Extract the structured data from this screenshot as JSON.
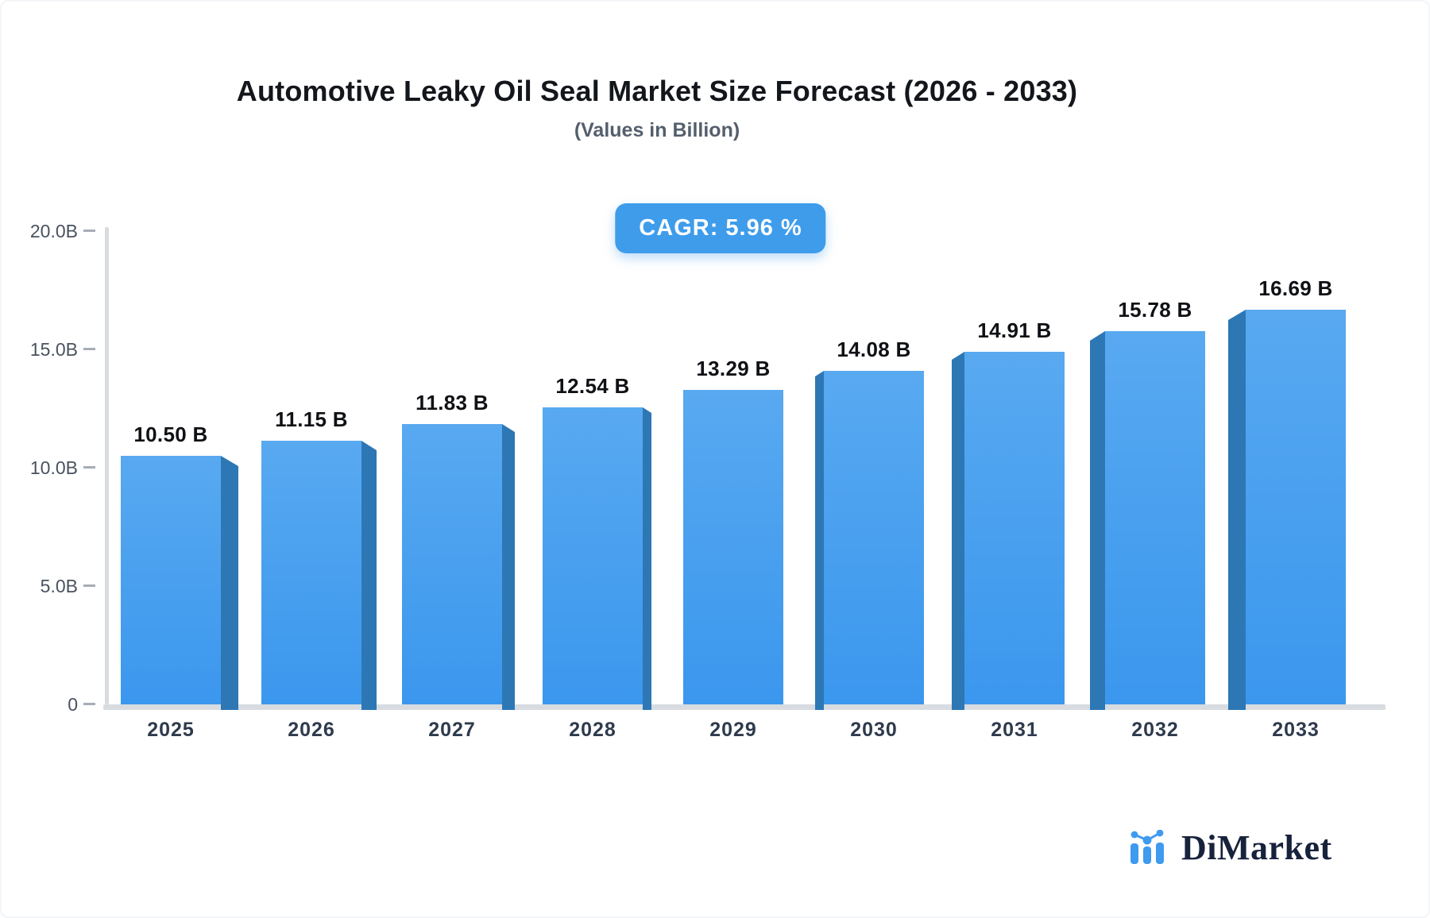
{
  "header": {
    "title": "Automotive Leaky Oil Seal Market Size Forecast (2026 - 2033)",
    "subtitle": "(Values in Billion)",
    "cagr_badge": "CAGR: 5.96 %"
  },
  "chart_data": {
    "type": "bar",
    "title": "Automotive Leaky Oil Seal Market Size Forecast (2026 - 2033)",
    "subtitle": "(Values in Billion)",
    "categories": [
      "2025",
      "2026",
      "2027",
      "2028",
      "2029",
      "2030",
      "2031",
      "2032",
      "2033"
    ],
    "values": [
      10.5,
      11.15,
      11.83,
      12.54,
      13.29,
      14.08,
      14.91,
      15.78,
      16.69
    ],
    "value_labels": [
      "10.50 B",
      "11.15 B",
      "11.83 B",
      "12.54 B",
      "13.29 B",
      "14.08 B",
      "14.91 B",
      "15.78 B",
      "16.69 B"
    ],
    "ylim": [
      0,
      20
    ],
    "yticks": {
      "values": [
        0,
        5,
        10,
        15,
        20
      ],
      "labels": [
        "0",
        "5.0B",
        "10.0B",
        "15.0B",
        "20.0B"
      ]
    },
    "xlabel": "",
    "ylabel": "",
    "grid": false,
    "legend": false,
    "bar_style": "3d-perspective-center-vanishing"
  },
  "footer": {
    "logo_text": "DiMarket",
    "logo_icon": "bar-chart-logo-icon"
  },
  "colors": {
    "badge_bg": "#3e9ceb",
    "badge_text": "#ffffff",
    "bar_face_top": "#58a9f0",
    "bar_face_bottom": "#3b97ee",
    "bar_side": "#2d77b5",
    "axis": "#d8dce1",
    "tick_dash": "#a6adb6",
    "tick_text": "#49525e",
    "year_text": "#2e3a4d",
    "value_text": "#0f1115",
    "logo_text": "#17223c",
    "logo_blue": "#3f9af0"
  }
}
